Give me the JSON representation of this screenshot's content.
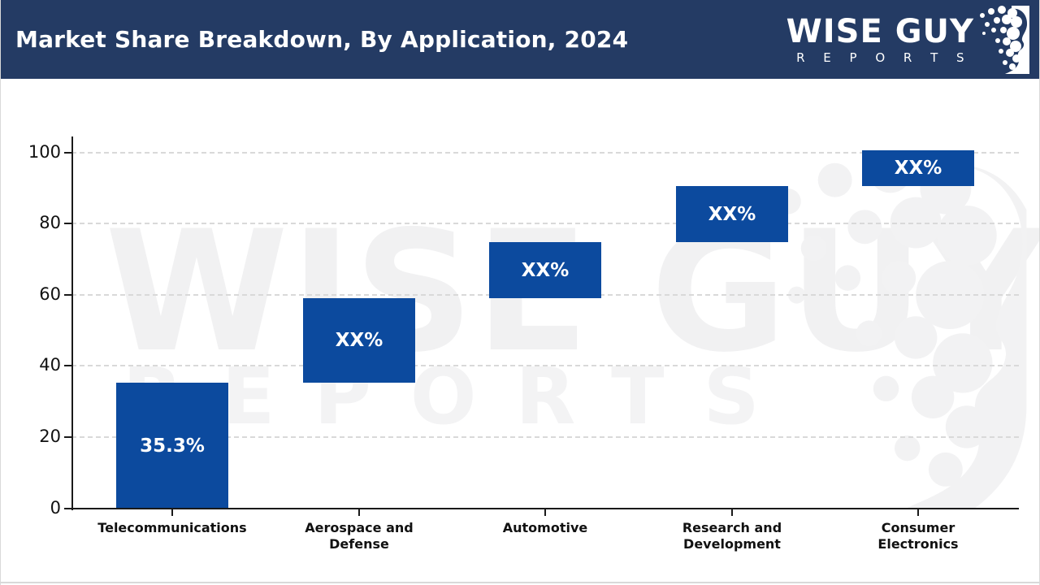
{
  "header": {
    "title": "Market Share Breakdown, By Application, 2024",
    "bg_color": "#243b64",
    "logo": {
      "line1": "WISE GUY",
      "line2": "REPORTS"
    }
  },
  "watermark": {
    "line1": "WISE GUY",
    "line2": "REPORTS"
  },
  "chart_data": {
    "type": "bar",
    "subtype": "floating-segment waterfall",
    "title": "Market Share Breakdown, By Application, 2024",
    "categories": [
      "Telecommunications",
      "Aerospace and Defense",
      "Automotive",
      "Research and Development",
      "Consumer Electronics"
    ],
    "category_label_lines": [
      [
        "Telecommunications"
      ],
      [
        "Aerospace and",
        "Defense"
      ],
      [
        "Automotive"
      ],
      [
        "Research and",
        "Development"
      ],
      [
        "Consumer",
        "Electronics"
      ]
    ],
    "segments": [
      {
        "category": "Telecommunications",
        "start": 0,
        "end": 35.3,
        "label": "35.3%"
      },
      {
        "category": "Aerospace and Defense",
        "start": 35.3,
        "end": 59.0,
        "label": "XX%"
      },
      {
        "category": "Automotive",
        "start": 59.0,
        "end": 74.8,
        "label": "XX%"
      },
      {
        "category": "Research and Development",
        "start": 74.8,
        "end": 90.5,
        "label": "XX%"
      },
      {
        "category": "Consumer Electronics",
        "start": 90.5,
        "end": 100.5,
        "label": "XX%"
      }
    ],
    "xlabel": "",
    "ylabel": "",
    "yticks": [
      0,
      20,
      40,
      60,
      80,
      100
    ],
    "ylim": [
      0,
      105
    ],
    "grid": "horizontal dashed",
    "legend": "none",
    "bar_color": "#0c4a9e",
    "bar_label_color": "#ffffff"
  }
}
